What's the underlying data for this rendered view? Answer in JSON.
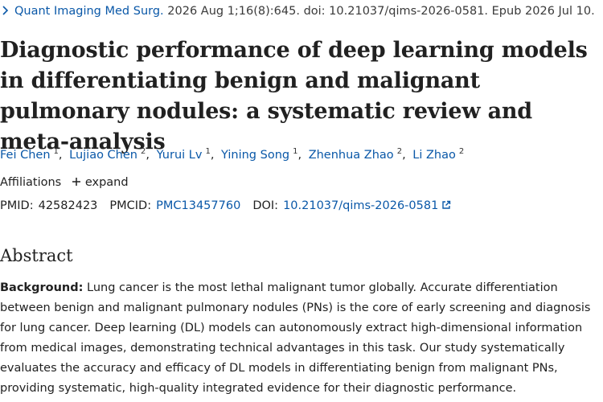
{
  "citation": {
    "journal": "Quant Imaging Med Surg.",
    "details": "2026 Aug 1;16(8):645. doi: 10.21037/qims-2026-0581. Epub 2026 Jul 10."
  },
  "article": {
    "title": "Diagnostic performance of deep learning models in differentiating benign and malignant pulmonary nodules: a systematic review and meta-analysis"
  },
  "authors": [
    {
      "name": "Fei Chen",
      "sup": "1"
    },
    {
      "name": "Lujiao Chen",
      "sup": "2"
    },
    {
      "name": "Yurui Lv",
      "sup": "1"
    },
    {
      "name": "Yining Song",
      "sup": "1"
    },
    {
      "name": "Zhenhua Zhao",
      "sup": "2"
    },
    {
      "name": "Li Zhao",
      "sup": "2"
    }
  ],
  "affiliations": {
    "label": "Affiliations",
    "expand_label": "expand"
  },
  "identifiers": {
    "pmid_label": "PMID:",
    "pmid": "42582423",
    "pmcid_label": "PMCID:",
    "pmcid": "PMC13457760",
    "doi_label": "DOI:",
    "doi": "10.21037/qims-2026-0581"
  },
  "abstract": {
    "heading": "Abstract",
    "background_label": "Background:",
    "background_text": " Lung cancer is the most lethal malignant tumor globally. Accurate differentiation between benign and malignant pulmonary nodules (PNs) is the core of early screening and diagnosis for lung cancer. Deep learning (DL) models can autonomously extract high-dimensional information from medical images, demonstrating technical advantages in this task. Our study systematically evaluates the accuracy and efficacy of DL models in differentiating benign from malignant PNs, providing systematic, high-quality integrated evidence for their diagnostic performance."
  },
  "colors": {
    "link": "#0a58a8",
    "text": "#212121"
  },
  "icons": {
    "citation": "chevron-right-icon",
    "expand": "plus-icon",
    "doi": "external-link-icon"
  }
}
